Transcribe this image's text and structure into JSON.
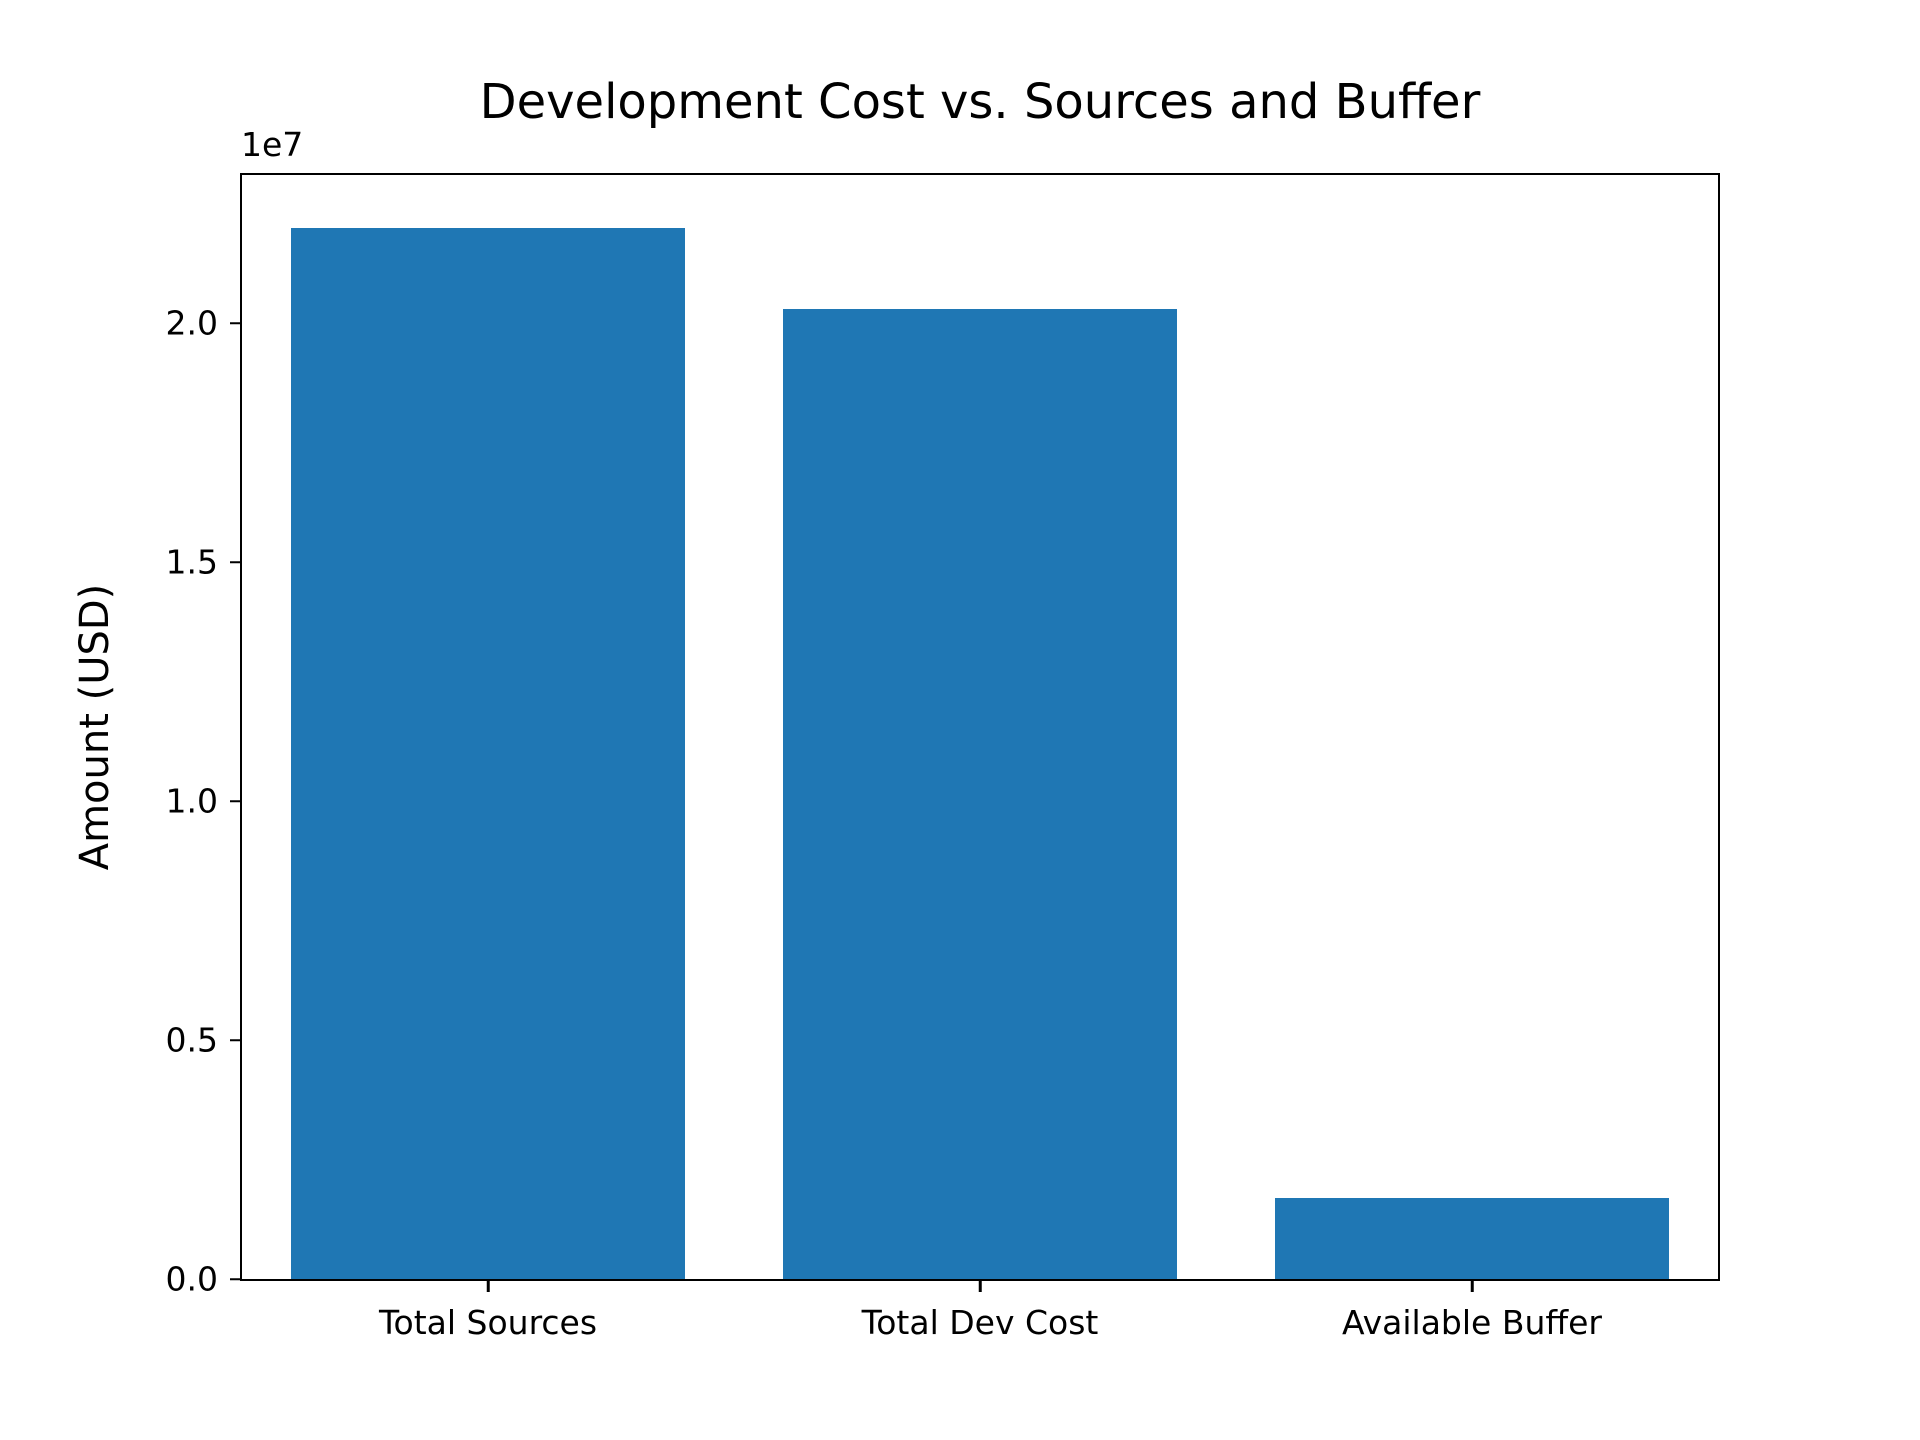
{
  "chart_data": {
    "type": "bar",
    "title": "Development Cost vs. Sources and Buffer",
    "ylabel": "Amount (USD)",
    "xlabel": "",
    "y_scale_offset_label": "1e7",
    "categories": [
      "Total Sources",
      "Total Dev Cost",
      "Available Buffer"
    ],
    "values": [
      22000000,
      20300000,
      1700000
    ],
    "ylim": [
      0,
      23100000
    ],
    "yticks": [
      0,
      5000000,
      10000000,
      15000000,
      20000000
    ],
    "ytick_labels": [
      "0.0",
      "0.5",
      "1.0",
      "1.5",
      "2.0"
    ],
    "bar_color": "#1f77b4",
    "bar_width_fraction": 0.8,
    "grid": false,
    "legend_position": "none"
  }
}
